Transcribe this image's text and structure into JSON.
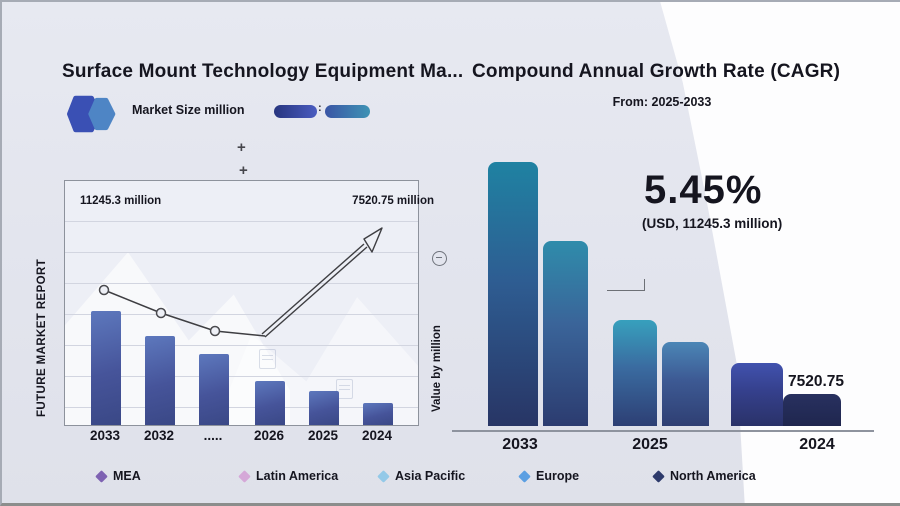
{
  "header": {
    "title_left": "Surface Mount Technology Equipment Ma...",
    "title_right": "Compound Annual Growth Rate (CAGR)",
    "subtitle_right": "From: 2025-2033",
    "brand_label": "Market Size million",
    "ratio_separator": ":"
  },
  "icons": {
    "plus": "+",
    "minus_circle": "circle-minus",
    "brand_logo": "double-hexagon",
    "legend_marker": "diamond"
  },
  "chart_data": [
    {
      "type": "bar",
      "name": "market-size-trend-chart",
      "title": "Market Size million",
      "side_caption": "FUTURE MARKET REPORT",
      "annotation_left": "11245.3 million",
      "annotation_right": "7520.75 million",
      "categories": [
        "2033",
        "2032",
        ".....",
        "2026",
        "2025",
        "2024"
      ],
      "series": [
        {
          "name": "Market size bars (relative height %, no numeric axis shown)",
          "values": [
            100,
            78,
            62,
            39,
            30,
            19
          ]
        },
        {
          "name": "Trend line markers (relative height %, first 4 categories, then arrow rises)",
          "values": [
            55,
            46,
            39,
            37
          ]
        }
      ],
      "annotations": [
        "11245.3 million (top-left)",
        "7520.75 million (top-right)",
        "hand-drawn arrow rising to top-right"
      ],
      "xlabel": "",
      "ylabel": "",
      "grid": true,
      "legend_position": "none"
    },
    {
      "type": "bar",
      "name": "cagr-grouped-bar-chart",
      "title": "Compound Annual Growth Rate (CAGR)",
      "subtitle": "From: 2025-2033",
      "cagr": "5.45%",
      "cagr_note": "(USD, 11245.3 million)",
      "value_label": "7520.75",
      "ylabel": "Value by million",
      "categories": [
        "2033",
        "2025",
        "2024"
      ],
      "series": [
        {
          "name": "tall bar (relative height %, no numeric axis shown)",
          "values": [
            100,
            40,
            24
          ]
        },
        {
          "name": "short bar (relative height %, no numeric axis shown)",
          "values": [
            70,
            32,
            12
          ]
        }
      ],
      "bars": [
        {
          "category": "2033",
          "value": 100,
          "color_top": "#1f82a2",
          "color_mid": "#2e5d92",
          "color_bottom": "#283565"
        },
        {
          "category": "2033",
          "value": 70,
          "color_top": "#2f8cab",
          "color_mid": "#3a6499",
          "color_bottom": "#2c3c70"
        },
        {
          "category": "2025",
          "value": 40,
          "color_top": "#37a0bd",
          "color_mid": "#3a6ba0",
          "color_bottom": "#2d3f74"
        },
        {
          "category": "2025",
          "value": 32,
          "color_top": "#4b86b6",
          "color_mid": "#3d5a94",
          "color_bottom": "#2f3f73"
        },
        {
          "category": "2024",
          "value": 24,
          "color_top": "#4152ae",
          "color_mid": "#35408c",
          "color_bottom": "#2a3268"
        },
        {
          "category": "2024",
          "value": 12,
          "color_top": "#28305f",
          "color_mid": "#242c58",
          "color_bottom": "#1f264e"
        }
      ],
      "grid": false,
      "legend_position": "bottom"
    }
  ],
  "legend": {
    "items": [
      {
        "label": "MEA",
        "color": "#7e62b2"
      },
      {
        "label": "Latin America",
        "color": "#d5a8d8"
      },
      {
        "label": "Asia Pacific",
        "color": "#93c9e8"
      },
      {
        "label": "Europe",
        "color": "#5b9fe2"
      },
      {
        "label": "North America",
        "color": "#2d3a6b"
      }
    ]
  },
  "colors": {
    "left_bar_top": "#5d78bd",
    "left_bar_bottom": "#3a4886",
    "background": "#e4e6ee",
    "panel": "#edeff6",
    "text": "#15151f"
  }
}
